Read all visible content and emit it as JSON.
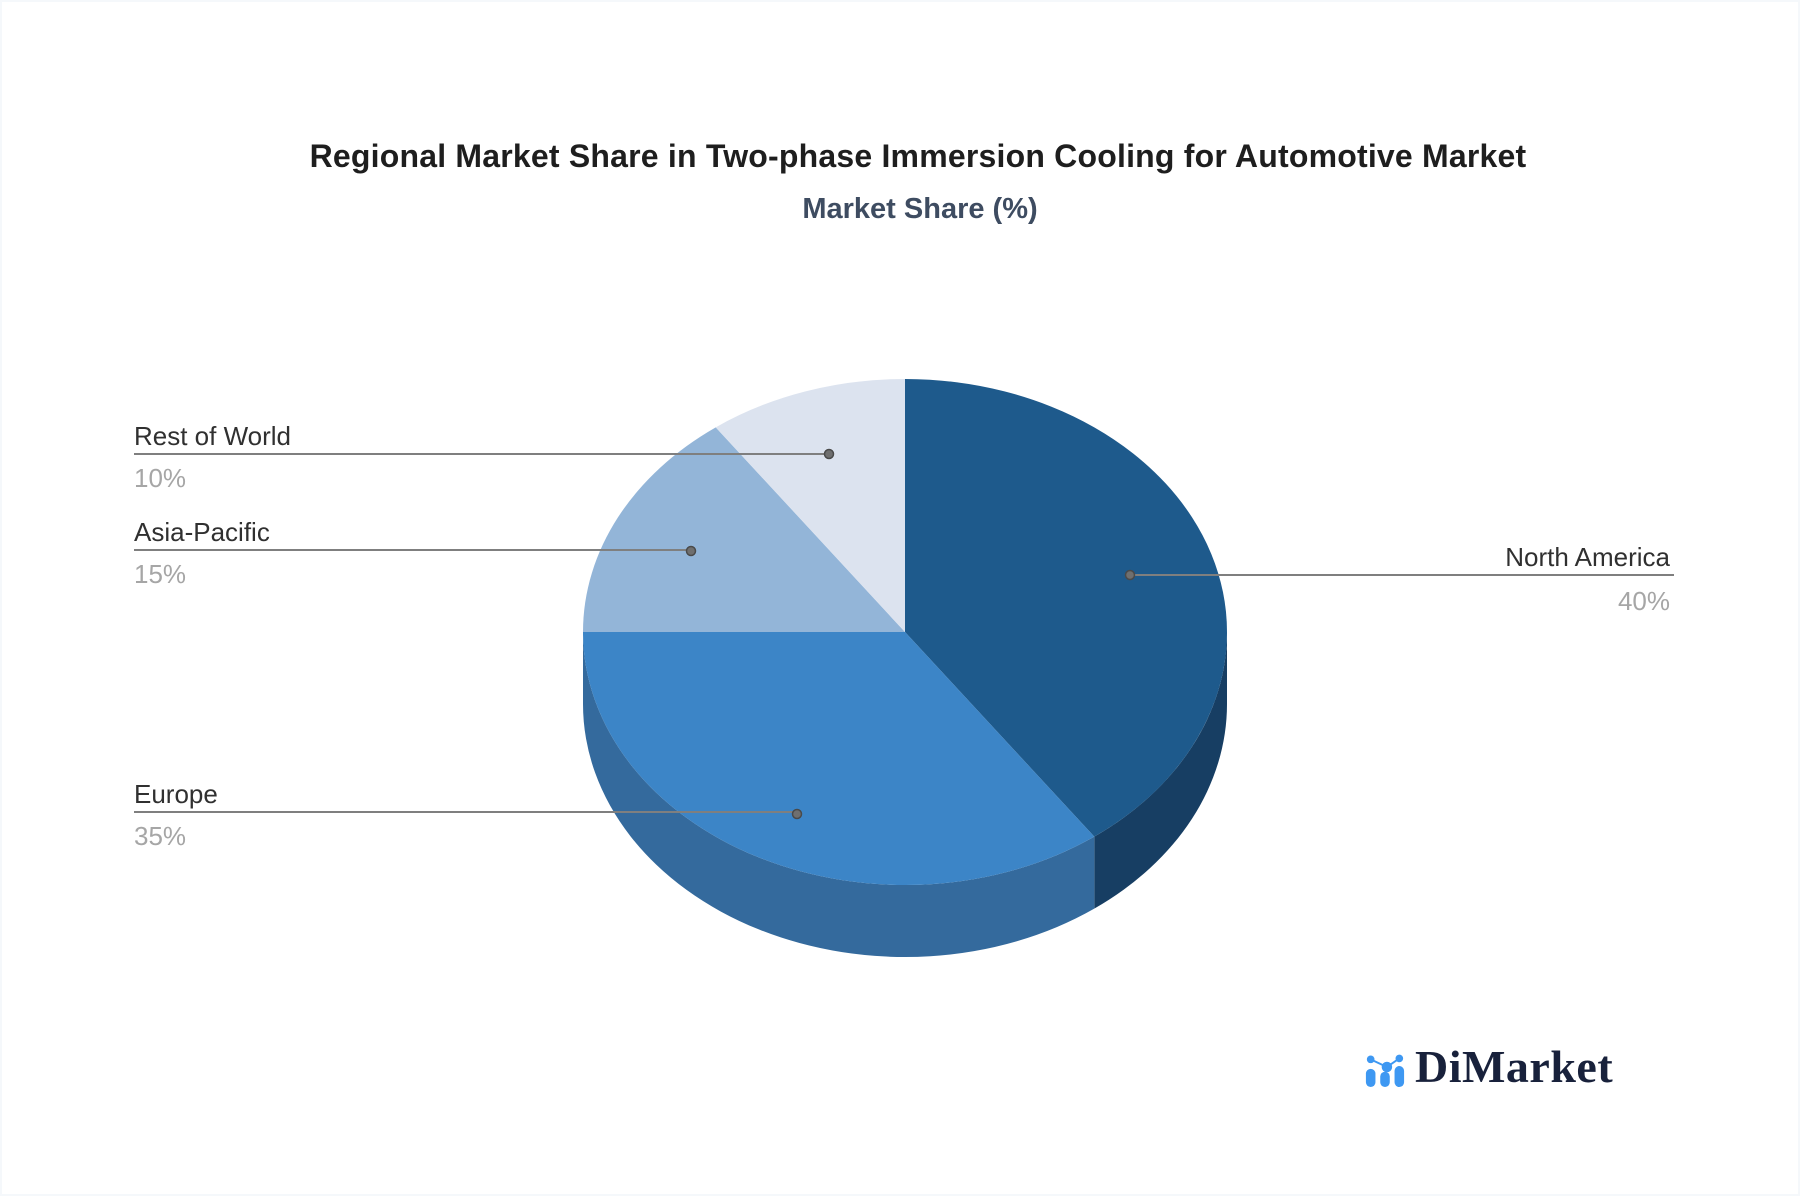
{
  "title": "Regional Market Share in Two-phase Immersion Cooling for Automotive Market",
  "subtitle": "Market Share (%)",
  "logo": {
    "text": "DiMarket",
    "icon": "bar-line-chart-icon",
    "accent_blue": "#3e98f2",
    "text_color": "#18213b"
  },
  "chart_data": {
    "type": "pie",
    "title": "Regional Market Share in Two-phase Immersion Cooling for Automotive Market",
    "subtitle": "Market Share (%)",
    "unit": "%",
    "effect": "3d",
    "start_angle_deg": 0,
    "direction": "clockwise",
    "legend_position": "callout-labels",
    "slices": [
      {
        "label": "North America",
        "value": 40,
        "pct": "40%",
        "color": "#1e5a8c",
        "side_color": "#173e63",
        "label_side": "right"
      },
      {
        "label": "Europe",
        "value": 35,
        "pct": "35%",
        "color": "#3c85c7",
        "side_color": "#346a9d",
        "label_side": "left"
      },
      {
        "label": "Asia-Pacific",
        "value": 15,
        "pct": "15%",
        "color": "#93b5d8",
        "side_color": "#6f94bf",
        "label_side": "left"
      },
      {
        "label": "Rest of World",
        "value": 10,
        "pct": "10%",
        "color": "#dce3ef",
        "side_color": "#b8c3d6",
        "label_side": "left"
      }
    ],
    "callout_line_color": "#7f7f7f",
    "callout_dot_color": "#6f6f6f"
  }
}
